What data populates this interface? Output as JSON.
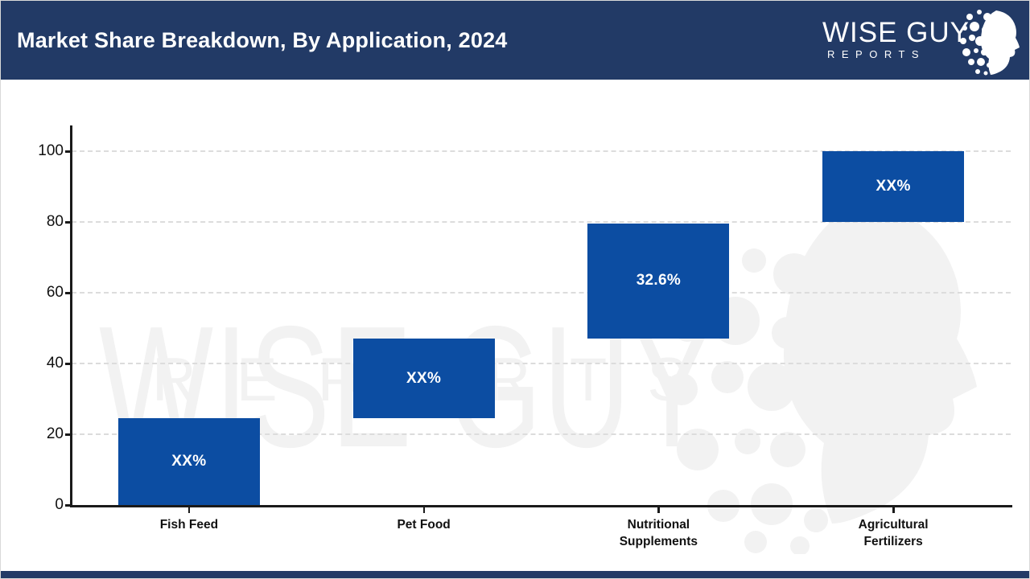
{
  "header": {
    "title": "Market Share Breakdown, By Application, 2024",
    "bg_color": "#223a66",
    "logo": {
      "line1": "WISE GUY",
      "line2": "REPORTS"
    }
  },
  "watermark": {
    "line1": "WISE GUY",
    "line2": "REPORTS"
  },
  "chart_data": {
    "type": "bar",
    "variant": "floating-range-waterfall",
    "title": "Market Share Breakdown, By Application, 2024",
    "categories": [
      "Fish Feed",
      "Pet Food",
      "Nutritional Supplements",
      "Agricultural Fertilizers"
    ],
    "category_lines": [
      [
        "Fish Feed"
      ],
      [
        "Pet Food"
      ],
      [
        "Nutritional",
        "Supplements"
      ],
      [
        "Agricultural",
        "Fertilizers"
      ]
    ],
    "series": [
      {
        "name": "Market Share (%)",
        "ranges": [
          [
            0,
            24.5
          ],
          [
            24.5,
            47
          ],
          [
            47,
            79.6
          ],
          [
            80,
            100
          ]
        ],
        "labels": [
          "XX%",
          "XX%",
          "32.6%",
          "XX%"
        ]
      }
    ],
    "ylabel": "",
    "xlabel": "",
    "ylim": [
      0,
      100
    ],
    "yticks": [
      0,
      20,
      40,
      60,
      80,
      100
    ],
    "grid": "dashed-horizontal",
    "legend": "none",
    "bar_color": "#0c4da2",
    "bar_label_color": "#ffffff",
    "axis_color": "#1a1a1a",
    "gridline_color": "#dcdcdc"
  }
}
